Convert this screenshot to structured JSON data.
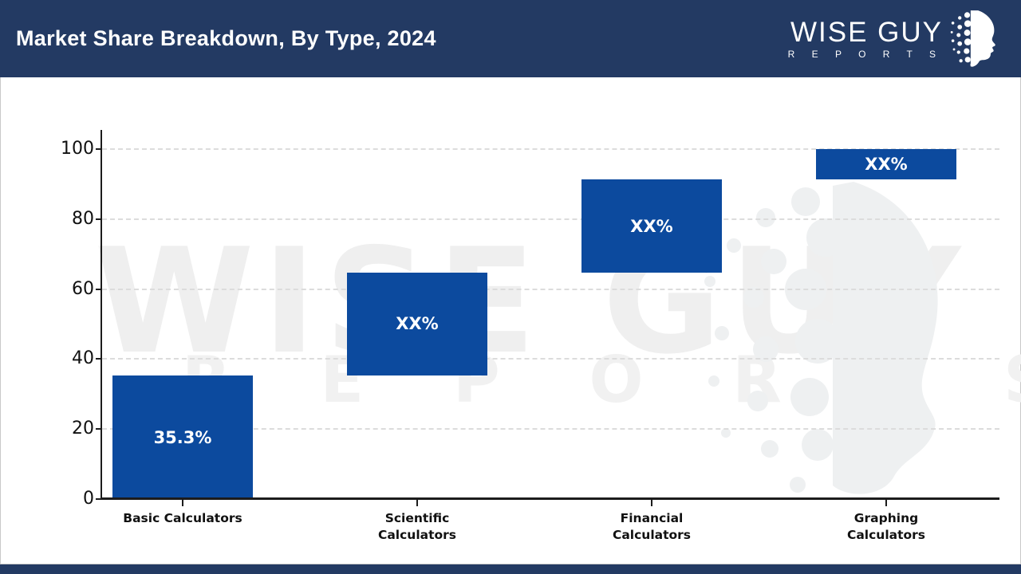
{
  "header": {
    "title": "Market Share Breakdown, By Type, 2024",
    "bg_color": "#233a63",
    "logo": {
      "line1": "WISE GUY",
      "line2": "R E P O R T S"
    }
  },
  "footer": {
    "bg_color": "#233a63"
  },
  "watermark": {
    "line1": "WISE GUY",
    "line2": "R E P O R T S"
  },
  "colors": {
    "bar": "#0c4a9e",
    "gridline": "#dcdcdc",
    "axis": "#1c1c1c",
    "watermark": "#eef0f1"
  },
  "chart_data": {
    "type": "bar",
    "subtype": "floating-segment (waterfall style market share)",
    "title": "Market Share Breakdown, By Type, 2024",
    "categories": [
      "Basic Calculators",
      "Scientific Calculators",
      "Financial Calculators",
      "Graphing Calculators"
    ],
    "category_label_lines": [
      [
        "Basic Calculators"
      ],
      [
        "Scientific",
        "Calculators"
      ],
      [
        "Financial",
        "Calculators"
      ],
      [
        "Graphing",
        "Calculators"
      ]
    ],
    "segments": [
      {
        "category": "Basic Calculators",
        "start": 0,
        "end": 35.3,
        "label": "35.3%"
      },
      {
        "category": "Scientific Calculators",
        "start": 35.3,
        "end": 64.7,
        "label": "XX%"
      },
      {
        "category": "Financial Calculators",
        "start": 64.7,
        "end": 91.3,
        "label": "XX%"
      },
      {
        "category": "Graphing Calculators",
        "start": 91.3,
        "end": 100,
        "label": "XX%"
      }
    ],
    "y_ticks": [
      0,
      20,
      40,
      60,
      80,
      100
    ],
    "y_tick_labels": [
      "0",
      "20",
      "40",
      "60",
      "80",
      "100"
    ],
    "ylim": [
      0,
      100
    ],
    "xlabel": "",
    "ylabel": "",
    "grid": "horizontal dashed",
    "legend": "none",
    "bar_color": "#0c4a9e"
  }
}
